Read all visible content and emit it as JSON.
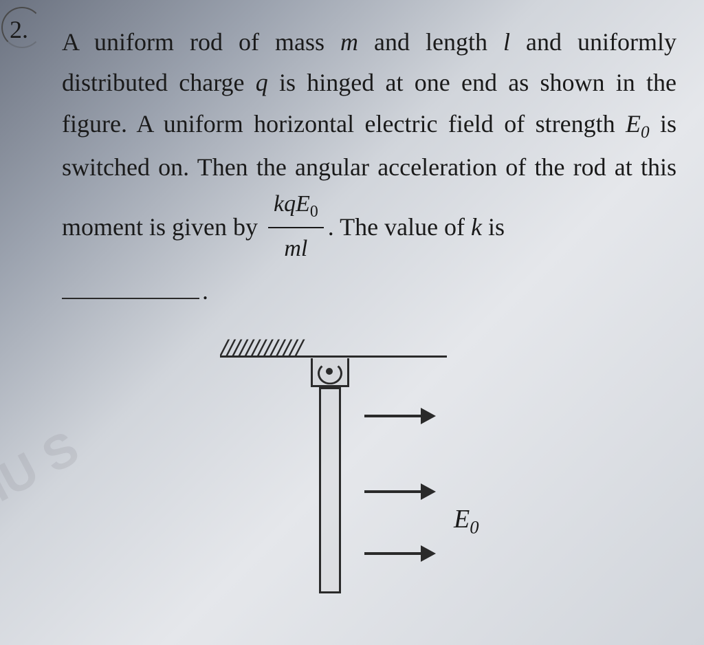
{
  "question": {
    "number": "2.",
    "text_parts": {
      "p1": "A uniform rod of mass ",
      "var_m": "m",
      "p2": " and length ",
      "var_l": "l",
      "p3": " and uniformly distributed charge ",
      "var_q": "q",
      "p4": " is hinged at one end as shown in the figure. A uniform horizontal electric field of strength ",
      "var_E": "E",
      "sub_0": "0",
      "p5": " is switched on. Then the angular acceleration of the rod at this moment is given by ",
      "frac_num_k": "k",
      "frac_num_q": "q",
      "frac_num_E": "E",
      "frac_den_m": "m",
      "frac_den_l": "l",
      "p6": ". The value of ",
      "var_k2": "k",
      "p7": " is ",
      "p8": "."
    }
  },
  "figure": {
    "hatching": "/////////////",
    "field_label_E": "E",
    "field_label_sub": "0"
  },
  "colors": {
    "text": "#1a1a1a",
    "line": "#2a2a2a",
    "bg_gradient_dark": "#6b7280",
    "bg_gradient_light": "#e5e7eb"
  }
}
